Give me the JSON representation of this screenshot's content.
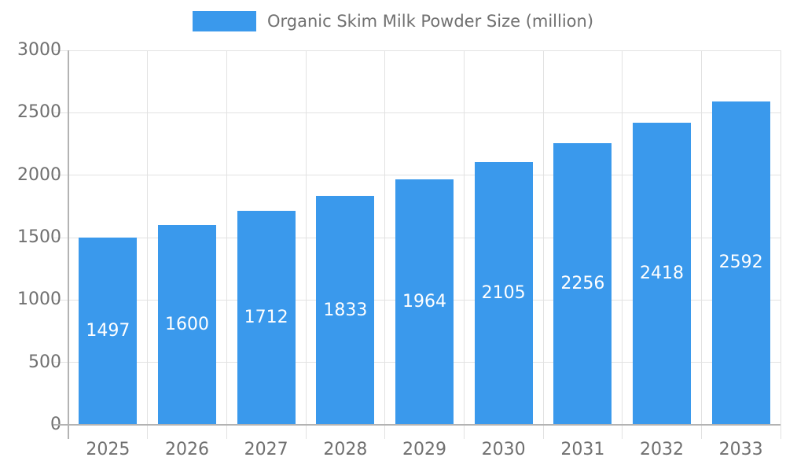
{
  "legend": {
    "label": "Organic Skim Milk Powder Size (million)"
  },
  "chart_data": {
    "type": "bar",
    "title": "Organic Skim Milk Powder Size (million)",
    "categories": [
      "2025",
      "2026",
      "2027",
      "2028",
      "2029",
      "2030",
      "2031",
      "2032",
      "2033"
    ],
    "values": [
      1497,
      1600,
      1712,
      1833,
      1964,
      2105,
      2256,
      2418,
      2592
    ],
    "series_name": "Organic Skim Milk Powder Size (million)",
    "xlabel": "",
    "ylabel": "",
    "ylim": [
      0,
      3000
    ],
    "yticks": [
      0,
      500,
      1000,
      1500,
      2000,
      2500,
      3000
    ],
    "grid": true,
    "legend_position": "top",
    "bar_labels_inside": true,
    "colors": {
      "bar": "#3a99ec",
      "bar_label": "#ffffff",
      "axis_text": "#707070",
      "grid_line": "#e2e2e2",
      "axis_line": "#b3b3b3",
      "background": "#ffffff"
    }
  }
}
